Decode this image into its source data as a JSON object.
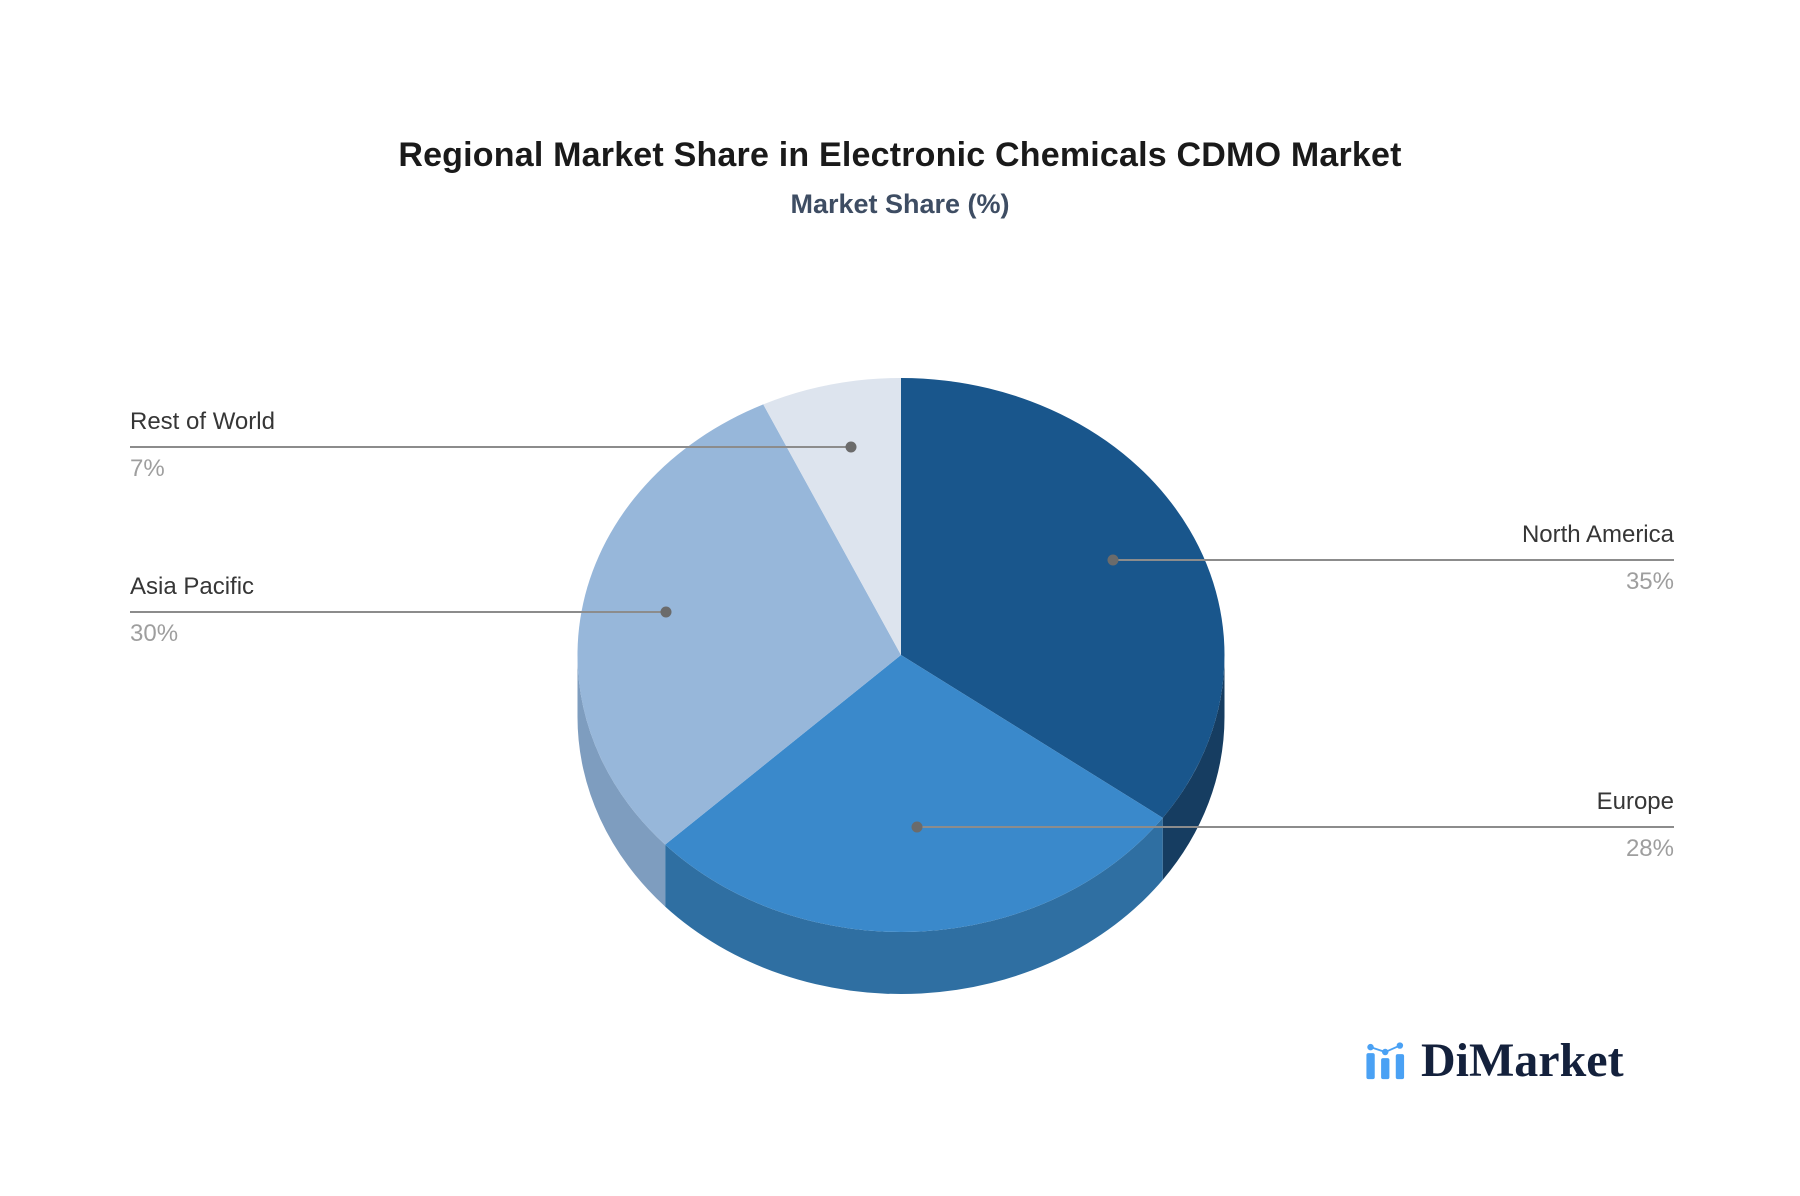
{
  "page": {
    "background": "#FFFFFF"
  },
  "header": {
    "title": "Regional Market Share in Electronic Chemicals CDMO Market",
    "subtitle": "Market Share (%)"
  },
  "chart_data": {
    "type": "pie",
    "style": "3d-pie",
    "title": "Regional Market Share in Electronic Chemicals CDMO Market",
    "subtitle": "Market Share (%)",
    "unit": "%",
    "start_angle": "12-oclock",
    "direction": "clockwise",
    "legend_position": "none",
    "label_style": "callout-leader-lines",
    "slices": [
      {
        "label": "North America",
        "value": 35,
        "display_value": "35%",
        "color": "#19568C",
        "side_color": "#163D61",
        "callout_side": "right"
      },
      {
        "label": "Europe",
        "value": 28,
        "display_value": "28%",
        "color": "#3A89CB",
        "side_color": "#2F6FA2",
        "callout_side": "right"
      },
      {
        "label": "Asia Pacific",
        "value": 30,
        "display_value": "30%",
        "color": "#97B7DA",
        "side_color": "#7E9DBF",
        "callout_side": "left"
      },
      {
        "label": "Rest of World",
        "value": 7,
        "display_value": "7%",
        "color": "#DDE4EE",
        "side_color": "#B9C6D6",
        "callout_side": "left"
      }
    ],
    "leader_line_color": "#8C8C8C",
    "leader_dot_color": "#6B6B6B",
    "label_name_color": "#363636",
    "label_value_color": "#9E9E9E"
  },
  "branding": {
    "logo_text": "DiMarket",
    "logo_icon": "bar-line-chart-icon",
    "logo_icon_color": "#4AA1F4",
    "logo_text_color": "#14213C"
  }
}
